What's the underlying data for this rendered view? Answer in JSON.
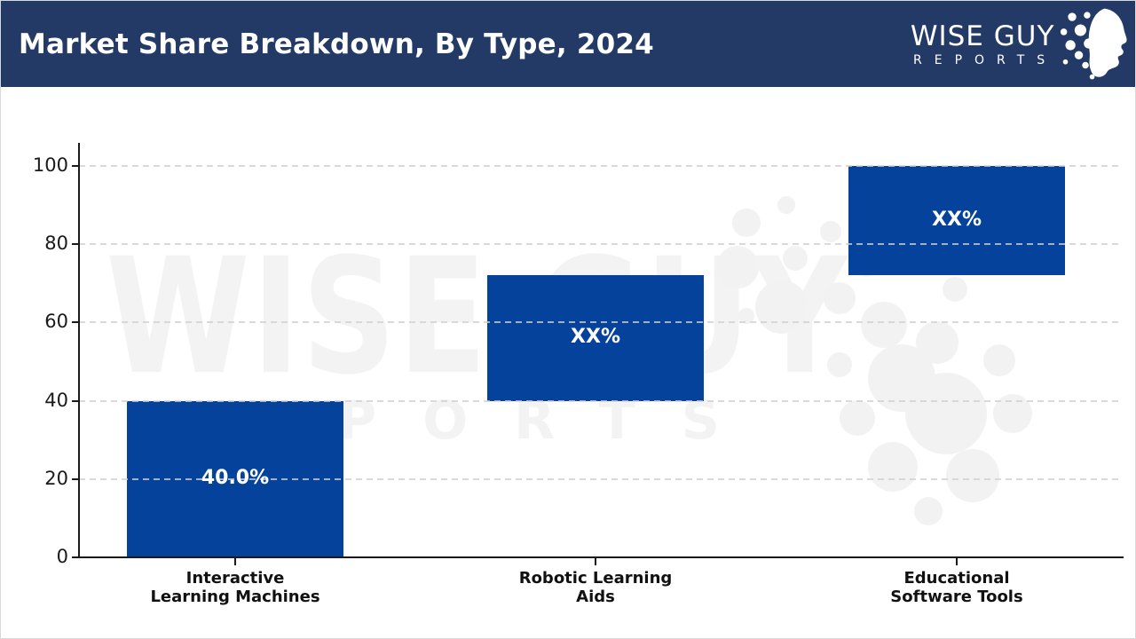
{
  "header": {
    "title": "Market Share Breakdown, By Type, 2024",
    "bg_color": "#233a66",
    "logo": {
      "line1": "WISE GUY",
      "line2": "REPORTS"
    }
  },
  "watermark": {
    "line1": "WISE GUY",
    "line2": "REPORTS"
  },
  "chart_data": {
    "type": "bar",
    "subtype": "floating-waterfall",
    "title": "Market Share Breakdown, By Type, 2024",
    "categories": [
      {
        "name": "Interactive Learning Machines",
        "lines": [
          "Interactive",
          "Learning Machines"
        ]
      },
      {
        "name": "Robotic Learning Aids",
        "lines": [
          "Robotic Learning",
          "Aids"
        ]
      },
      {
        "name": "Educational Software Tools",
        "lines": [
          "Educational",
          "Software Tools"
        ]
      }
    ],
    "segments": [
      {
        "category": "Interactive Learning Machines",
        "start": 0,
        "end": 40,
        "label": "40.0%"
      },
      {
        "category": "Robotic Learning Aids",
        "start": 40,
        "end": 72,
        "label": "XX%"
      },
      {
        "category": "Educational Software Tools",
        "start": 72,
        "end": 100,
        "label": "XX%"
      }
    ],
    "bar_color": "#04429c",
    "label_color": "#ffffff",
    "axis_color": "#1a1a1a",
    "grid_color": "#d4d4d4",
    "grid_style": "dashed-horizontal",
    "ylim": [
      0,
      100
    ],
    "yticks": [
      0,
      20,
      40,
      60,
      80,
      100
    ],
    "xlabel": "",
    "ylabel": "",
    "legend": "none"
  }
}
